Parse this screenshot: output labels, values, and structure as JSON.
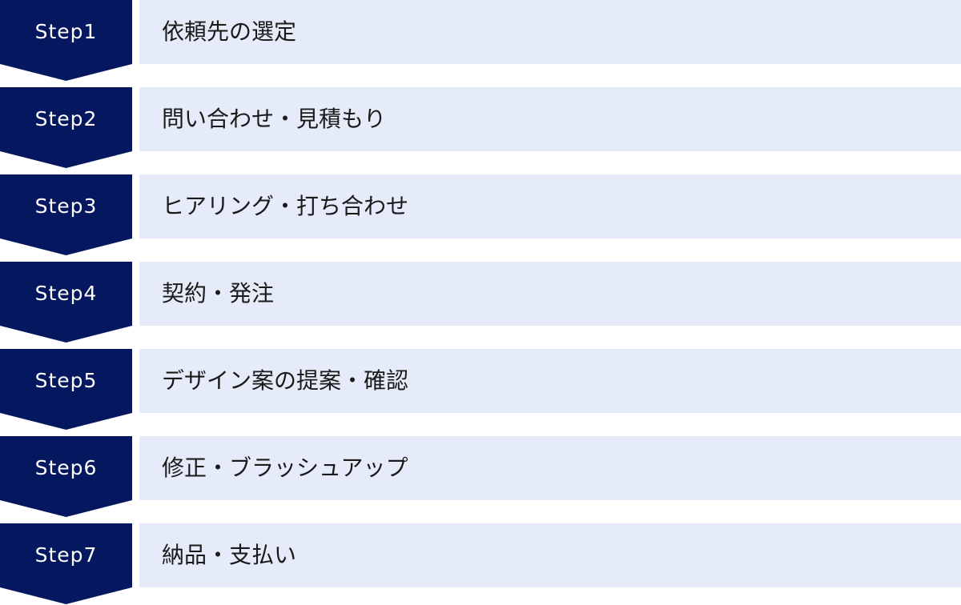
{
  "colors": {
    "step_fill": "#04175f",
    "box_fill": "#e5ebf8"
  },
  "steps": [
    {
      "label": "Step1",
      "text": "依頼先の選定"
    },
    {
      "label": "Step2",
      "text": "問い合わせ・見積もり"
    },
    {
      "label": "Step3",
      "text": "ヒアリング・打ち合わせ"
    },
    {
      "label": "Step4",
      "text": "契約・発注"
    },
    {
      "label": "Step5",
      "text": "デザイン案の提案・確認"
    },
    {
      "label": "Step6",
      "text": "修正・ブラッシュアップ"
    },
    {
      "label": "Step7",
      "text": "納品・支払い"
    }
  ]
}
